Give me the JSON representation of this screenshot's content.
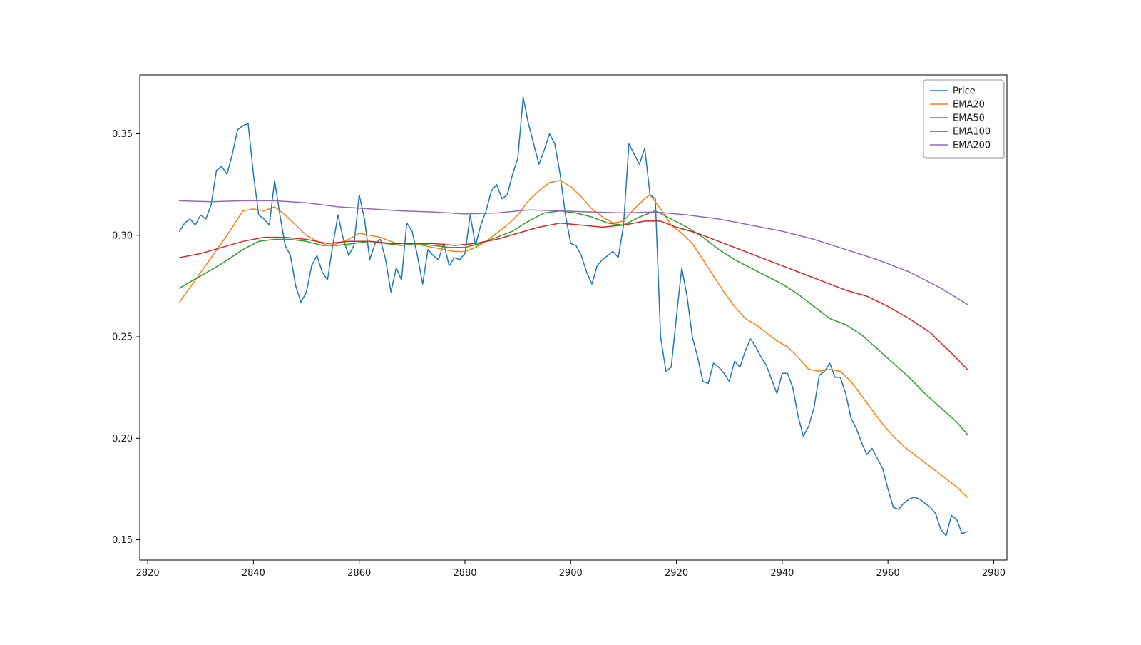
{
  "figure": {
    "background": "#ffffff",
    "axes_edge_color": "#000000",
    "tick_label_color": "#1a1a1a"
  },
  "chart_data": {
    "type": "line",
    "title": "",
    "xlabel": "",
    "ylabel": "",
    "xlim": [
      2818.5,
      2982.5
    ],
    "ylim": [
      0.14,
      0.379
    ],
    "xticks": [
      2820,
      2840,
      2860,
      2880,
      2900,
      2920,
      2940,
      2960,
      2980
    ],
    "yticks": [
      0.15,
      0.2,
      0.25,
      0.3,
      0.35
    ],
    "grid": false,
    "legend_position": "upper right",
    "series": [
      {
        "name": "Price",
        "color": "#1f77b4",
        "x_start": 2826,
        "x_step": 1,
        "y": [
          0.302,
          0.306,
          0.308,
          0.305,
          0.31,
          0.308,
          0.315,
          0.332,
          0.334,
          0.33,
          0.34,
          0.352,
          0.354,
          0.355,
          0.33,
          0.31,
          0.308,
          0.305,
          0.327,
          0.31,
          0.295,
          0.29,
          0.275,
          0.267,
          0.272,
          0.285,
          0.29,
          0.282,
          0.278,
          0.295,
          0.31,
          0.298,
          0.29,
          0.295,
          0.32,
          0.308,
          0.288,
          0.296,
          0.298,
          0.288,
          0.272,
          0.284,
          0.278,
          0.306,
          0.302,
          0.29,
          0.276,
          0.293,
          0.29,
          0.288,
          0.296,
          0.285,
          0.289,
          0.288,
          0.291,
          0.31,
          0.295,
          0.305,
          0.312,
          0.322,
          0.325,
          0.318,
          0.32,
          0.33,
          0.338,
          0.368,
          0.355,
          0.345,
          0.335,
          0.342,
          0.35,
          0.345,
          0.33,
          0.31,
          0.296,
          0.295,
          0.29,
          0.282,
          0.276,
          0.285,
          0.288,
          0.29,
          0.292,
          0.289,
          0.305,
          0.345,
          0.34,
          0.335,
          0.343,
          0.32,
          0.318,
          0.25,
          0.233,
          0.235,
          0.26,
          0.284,
          0.27,
          0.25,
          0.24,
          0.228,
          0.227,
          0.237,
          0.235,
          0.232,
          0.228,
          0.238,
          0.235,
          0.243,
          0.249,
          0.245,
          0.24,
          0.236,
          0.229,
          0.222,
          0.232,
          0.232,
          0.225,
          0.211,
          0.201,
          0.206,
          0.215,
          0.231,
          0.233,
          0.237,
          0.23,
          0.23,
          0.222,
          0.21,
          0.205,
          0.198,
          0.192,
          0.195,
          0.19,
          0.185,
          0.175,
          0.166,
          0.165,
          0.168,
          0.17,
          0.171,
          0.17,
          0.168,
          0.166,
          0.163,
          0.155,
          0.152,
          0.162,
          0.16,
          0.153,
          0.154
        ]
      },
      {
        "name": "EMA20",
        "color": "#ff7f0e",
        "points": [
          [
            2826,
            0.267
          ],
          [
            2829,
            0.278
          ],
          [
            2832,
            0.289
          ],
          [
            2835,
            0.3
          ],
          [
            2838,
            0.312
          ],
          [
            2840,
            0.313
          ],
          [
            2842,
            0.312
          ],
          [
            2844,
            0.314
          ],
          [
            2846,
            0.31
          ],
          [
            2848,
            0.305
          ],
          [
            2850,
            0.3
          ],
          [
            2852,
            0.297
          ],
          [
            2854,
            0.295
          ],
          [
            2856,
            0.296
          ],
          [
            2858,
            0.298
          ],
          [
            2860,
            0.301
          ],
          [
            2862,
            0.3
          ],
          [
            2864,
            0.299
          ],
          [
            2866,
            0.297
          ],
          [
            2868,
            0.295
          ],
          [
            2870,
            0.296
          ],
          [
            2872,
            0.295
          ],
          [
            2874,
            0.294
          ],
          [
            2876,
            0.293
          ],
          [
            2878,
            0.292
          ],
          [
            2880,
            0.292
          ],
          [
            2882,
            0.294
          ],
          [
            2884,
            0.297
          ],
          [
            2886,
            0.301
          ],
          [
            2888,
            0.305
          ],
          [
            2890,
            0.31
          ],
          [
            2892,
            0.317
          ],
          [
            2894,
            0.322
          ],
          [
            2896,
            0.326
          ],
          [
            2898,
            0.327
          ],
          [
            2900,
            0.324
          ],
          [
            2902,
            0.319
          ],
          [
            2904,
            0.313
          ],
          [
            2906,
            0.309
          ],
          [
            2908,
            0.306
          ],
          [
            2910,
            0.307
          ],
          [
            2912,
            0.313
          ],
          [
            2914,
            0.318
          ],
          [
            2915,
            0.32
          ],
          [
            2917,
            0.313
          ],
          [
            2919,
            0.305
          ],
          [
            2921,
            0.301
          ],
          [
            2923,
            0.296
          ],
          [
            2925,
            0.288
          ],
          [
            2927,
            0.28
          ],
          [
            2929,
            0.272
          ],
          [
            2931,
            0.265
          ],
          [
            2933,
            0.259
          ],
          [
            2935,
            0.256
          ],
          [
            2937,
            0.252
          ],
          [
            2939,
            0.248
          ],
          [
            2941,
            0.245
          ],
          [
            2943,
            0.24
          ],
          [
            2945,
            0.234
          ],
          [
            2947,
            0.233
          ],
          [
            2949,
            0.234
          ],
          [
            2951,
            0.233
          ],
          [
            2953,
            0.228
          ],
          [
            2955,
            0.221
          ],
          [
            2957,
            0.214
          ],
          [
            2959,
            0.207
          ],
          [
            2961,
            0.201
          ],
          [
            2963,
            0.196
          ],
          [
            2965,
            0.192
          ],
          [
            2967,
            0.188
          ],
          [
            2969,
            0.184
          ],
          [
            2971,
            0.18
          ],
          [
            2973,
            0.176
          ],
          [
            2975,
            0.171
          ]
        ]
      },
      {
        "name": "EMA50",
        "color": "#2ca02c",
        "points": [
          [
            2826,
            0.274
          ],
          [
            2830,
            0.28
          ],
          [
            2834,
            0.286
          ],
          [
            2838,
            0.293
          ],
          [
            2841,
            0.297
          ],
          [
            2844,
            0.298
          ],
          [
            2847,
            0.298
          ],
          [
            2850,
            0.297
          ],
          [
            2853,
            0.295
          ],
          [
            2856,
            0.295
          ],
          [
            2859,
            0.296
          ],
          [
            2862,
            0.297
          ],
          [
            2865,
            0.296
          ],
          [
            2868,
            0.295
          ],
          [
            2871,
            0.296
          ],
          [
            2874,
            0.295
          ],
          [
            2877,
            0.294
          ],
          [
            2880,
            0.294
          ],
          [
            2883,
            0.296
          ],
          [
            2886,
            0.299
          ],
          [
            2889,
            0.302
          ],
          [
            2892,
            0.307
          ],
          [
            2895,
            0.311
          ],
          [
            2898,
            0.312
          ],
          [
            2901,
            0.311
          ],
          [
            2904,
            0.309
          ],
          [
            2907,
            0.306
          ],
          [
            2910,
            0.305
          ],
          [
            2913,
            0.309
          ],
          [
            2916,
            0.312
          ],
          [
            2919,
            0.308
          ],
          [
            2922,
            0.304
          ],
          [
            2925,
            0.299
          ],
          [
            2928,
            0.293
          ],
          [
            2931,
            0.288
          ],
          [
            2934,
            0.284
          ],
          [
            2937,
            0.28
          ],
          [
            2940,
            0.276
          ],
          [
            2943,
            0.271
          ],
          [
            2946,
            0.265
          ],
          [
            2949,
            0.259
          ],
          [
            2952,
            0.256
          ],
          [
            2955,
            0.251
          ],
          [
            2958,
            0.244
          ],
          [
            2961,
            0.237
          ],
          [
            2964,
            0.23
          ],
          [
            2967,
            0.222
          ],
          [
            2970,
            0.215
          ],
          [
            2973,
            0.208
          ],
          [
            2975,
            0.202
          ]
        ]
      },
      {
        "name": "EMA100",
        "color": "#d62728",
        "points": [
          [
            2826,
            0.289
          ],
          [
            2830,
            0.291
          ],
          [
            2834,
            0.294
          ],
          [
            2838,
            0.297
          ],
          [
            2842,
            0.299
          ],
          [
            2846,
            0.299
          ],
          [
            2850,
            0.298
          ],
          [
            2854,
            0.296
          ],
          [
            2858,
            0.297
          ],
          [
            2862,
            0.297
          ],
          [
            2866,
            0.296
          ],
          [
            2870,
            0.296
          ],
          [
            2874,
            0.296
          ],
          [
            2878,
            0.295
          ],
          [
            2882,
            0.296
          ],
          [
            2886,
            0.298
          ],
          [
            2890,
            0.301
          ],
          [
            2894,
            0.304
          ],
          [
            2898,
            0.306
          ],
          [
            2902,
            0.305
          ],
          [
            2906,
            0.304
          ],
          [
            2910,
            0.305
          ],
          [
            2914,
            0.307
          ],
          [
            2917,
            0.307
          ],
          [
            2920,
            0.304
          ],
          [
            2924,
            0.301
          ],
          [
            2928,
            0.297
          ],
          [
            2932,
            0.293
          ],
          [
            2936,
            0.289
          ],
          [
            2940,
            0.285
          ],
          [
            2944,
            0.281
          ],
          [
            2948,
            0.277
          ],
          [
            2952,
            0.273
          ],
          [
            2956,
            0.27
          ],
          [
            2960,
            0.265
          ],
          [
            2964,
            0.259
          ],
          [
            2968,
            0.252
          ],
          [
            2972,
            0.242
          ],
          [
            2975,
            0.234
          ]
        ]
      },
      {
        "name": "EMA200",
        "color": "#9467bd",
        "points": [
          [
            2826,
            0.317
          ],
          [
            2832,
            0.3165
          ],
          [
            2838,
            0.317
          ],
          [
            2844,
            0.317
          ],
          [
            2850,
            0.316
          ],
          [
            2856,
            0.314
          ],
          [
            2862,
            0.313
          ],
          [
            2868,
            0.312
          ],
          [
            2874,
            0.3115
          ],
          [
            2880,
            0.3105
          ],
          [
            2886,
            0.311
          ],
          [
            2892,
            0.3125
          ],
          [
            2898,
            0.312
          ],
          [
            2904,
            0.3115
          ],
          [
            2910,
            0.311
          ],
          [
            2916,
            0.3115
          ],
          [
            2922,
            0.31
          ],
          [
            2928,
            0.308
          ],
          [
            2934,
            0.305
          ],
          [
            2940,
            0.302
          ],
          [
            2946,
            0.298
          ],
          [
            2952,
            0.293
          ],
          [
            2958,
            0.288
          ],
          [
            2964,
            0.282
          ],
          [
            2970,
            0.274
          ],
          [
            2975,
            0.266
          ]
        ]
      }
    ]
  }
}
